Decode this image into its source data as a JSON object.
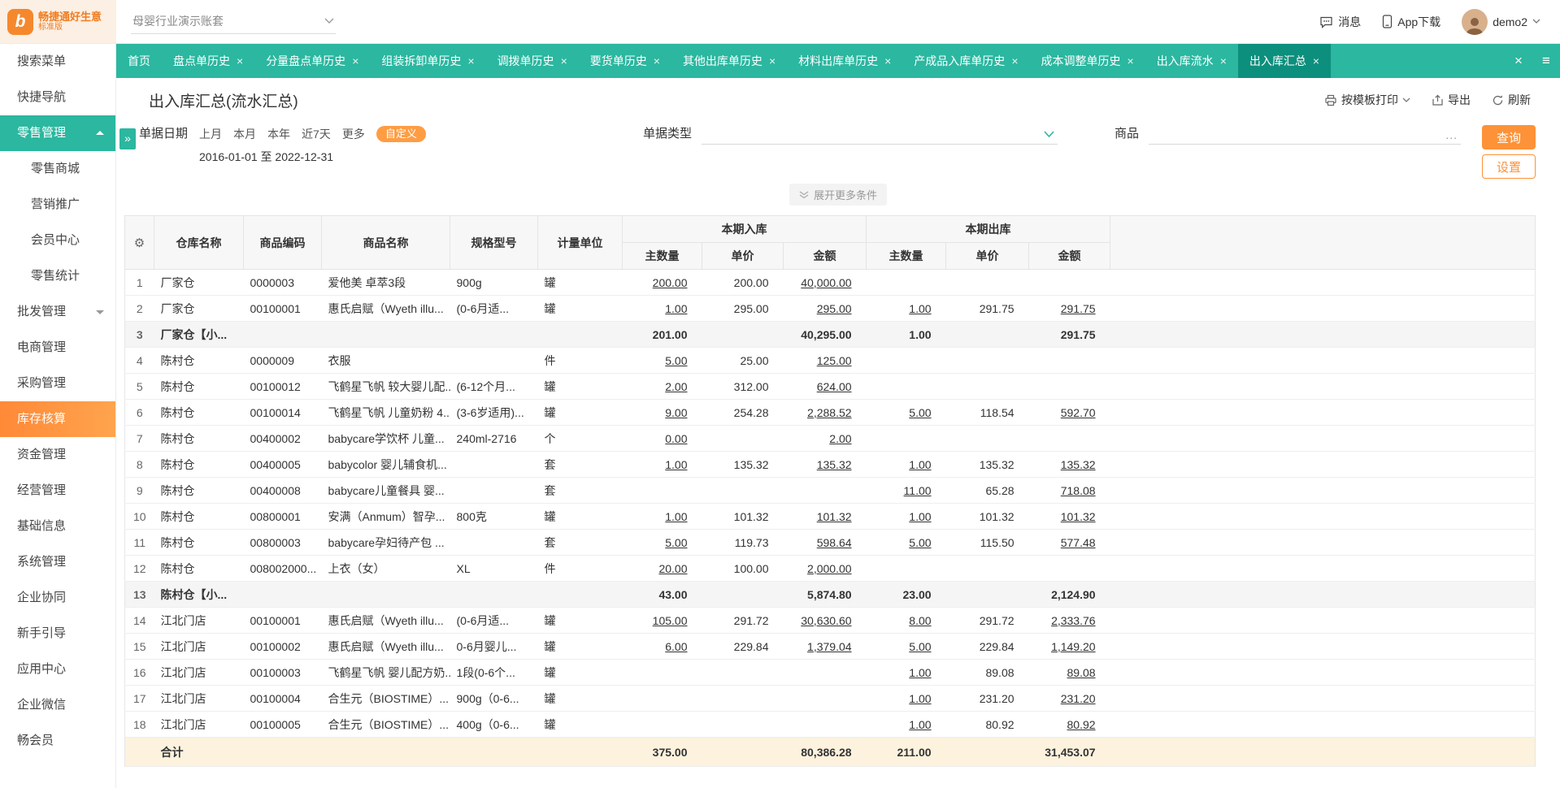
{
  "topbar": {
    "brand": "畅捷通好生意",
    "edition": "标准版",
    "account": "母婴行业演示账套",
    "messages": "消息",
    "app_download": "App下载",
    "user": "demo2"
  },
  "tabs": [
    {
      "label": "首页",
      "closable": false
    },
    {
      "label": "盘点单历史",
      "closable": true
    },
    {
      "label": "分量盘点单历史",
      "closable": true
    },
    {
      "label": "组装拆卸单历史",
      "closable": true
    },
    {
      "label": "调拨单历史",
      "closable": true
    },
    {
      "label": "要货单历史",
      "closable": true
    },
    {
      "label": "其他出库单历史",
      "closable": true
    },
    {
      "label": "材料出库单历史",
      "closable": true
    },
    {
      "label": "产成品入库单历史",
      "closable": true
    },
    {
      "label": "成本调整单历史",
      "closable": true
    },
    {
      "label": "出入库流水",
      "closable": true
    },
    {
      "label": "出入库汇总",
      "closable": true,
      "active": true
    }
  ],
  "sidebar": [
    {
      "label": "搜索菜单",
      "kind": "item"
    },
    {
      "label": "快捷导航",
      "kind": "item"
    },
    {
      "label": "零售管理",
      "kind": "item",
      "state": "teal",
      "caret": "up"
    },
    {
      "label": "零售商城",
      "kind": "sub"
    },
    {
      "label": "营销推广",
      "kind": "sub"
    },
    {
      "label": "会员中心",
      "kind": "sub"
    },
    {
      "label": "零售统计",
      "kind": "sub"
    },
    {
      "label": "批发管理",
      "kind": "item",
      "caret": "down"
    },
    {
      "label": "电商管理",
      "kind": "item"
    },
    {
      "label": "采购管理",
      "kind": "item"
    },
    {
      "label": "库存核算",
      "kind": "item",
      "state": "orange"
    },
    {
      "label": "资金管理",
      "kind": "item"
    },
    {
      "label": "经营管理",
      "kind": "item"
    },
    {
      "label": "基础信息",
      "kind": "item"
    },
    {
      "label": "系统管理",
      "kind": "item"
    },
    {
      "label": "企业协同",
      "kind": "item"
    },
    {
      "label": "新手引导",
      "kind": "item"
    },
    {
      "label": "应用中心",
      "kind": "item"
    },
    {
      "label": "企业微信",
      "kind": "item"
    },
    {
      "label": "畅会员",
      "kind": "item"
    }
  ],
  "page": {
    "title": "出入库汇总(流水汇总)",
    "print": "按模板打印",
    "export": "导出",
    "refresh": "刷新"
  },
  "filter": {
    "date_label": "单据日期",
    "quick_links": [
      "上月",
      "本月",
      "本年",
      "近7天",
      "更多"
    ],
    "custom": "自定义",
    "date_range": "2016-01-01 至 2022-12-31",
    "type_label": "单据类型",
    "product_label": "商品",
    "dots": "...",
    "query": "查询",
    "settings": "设置",
    "expand_more": "展开更多条件"
  },
  "table": {
    "group_in": "本期入库",
    "group_out": "本期出库",
    "headers": {
      "warehouse": "仓库名称",
      "code": "商品编码",
      "name": "商品名称",
      "spec": "规格型号",
      "unit": "计量单位",
      "qty": "主数量",
      "price": "单价",
      "amount": "金额"
    },
    "rows": [
      {
        "num": "1",
        "warehouse": "厂家仓",
        "code": "0000003",
        "name": "爱他美 卓萃3段",
        "spec": "900g",
        "unit": "罐",
        "in_qty": "200.00",
        "in_price": "200.00",
        "in_amount": "40,000.00"
      },
      {
        "num": "2",
        "warehouse": "厂家仓",
        "code": "00100001",
        "name": "惠氏启赋（Wyeth illu...",
        "spec": "(0-6月适...",
        "unit": "罐",
        "in_qty": "1.00",
        "in_price": "295.00",
        "in_amount": "295.00",
        "out_qty": "1.00",
        "out_price": "291.75",
        "out_amount": "291.75"
      },
      {
        "num": "3",
        "type": "group",
        "warehouse": "厂家仓【小...",
        "in_qty": "201.00",
        "in_amount": "40,295.00",
        "out_qty": "1.00",
        "out_amount": "291.75"
      },
      {
        "num": "4",
        "warehouse": "陈村仓",
        "code": "0000009",
        "name": "衣服",
        "unit": "件",
        "in_qty": "5.00",
        "in_price": "25.00",
        "in_amount": "125.00"
      },
      {
        "num": "5",
        "warehouse": "陈村仓",
        "code": "00100012",
        "name": "飞鹤星飞帆 较大婴儿配...",
        "spec": "(6-12个月...",
        "unit": "罐",
        "in_qty": "2.00",
        "in_price": "312.00",
        "in_amount": "624.00"
      },
      {
        "num": "6",
        "warehouse": "陈村仓",
        "code": "00100014",
        "name": "飞鹤星飞帆 儿童奶粉 4...",
        "spec": "(3-6岁适用)...",
        "unit": "罐",
        "in_qty": "9.00",
        "in_price": "254.28",
        "in_amount": "2,288.52",
        "out_qty": "5.00",
        "out_price": "118.54",
        "out_amount": "592.70"
      },
      {
        "num": "7",
        "warehouse": "陈村仓",
        "code": "00400002",
        "name": "babycare学饮杯 儿童...",
        "spec": "240ml-2716",
        "unit": "个",
        "in_qty": "0.00",
        "in_amount": "2.00"
      },
      {
        "num": "8",
        "warehouse": "陈村仓",
        "code": "00400005",
        "name": "babycolor 婴儿辅食机...",
        "unit": "套",
        "in_qty": "1.00",
        "in_price": "135.32",
        "in_amount": "135.32",
        "out_qty": "1.00",
        "out_price": "135.32",
        "out_amount": "135.32"
      },
      {
        "num": "9",
        "warehouse": "陈村仓",
        "code": "00400008",
        "name": "babycare儿童餐具 婴...",
        "unit": "套",
        "out_qty": "11.00",
        "out_price": "65.28",
        "out_amount": "718.08"
      },
      {
        "num": "10",
        "warehouse": "陈村仓",
        "code": "00800001",
        "name": "安满（Anmum）智孕...",
        "spec": "800克",
        "unit": "罐",
        "in_qty": "1.00",
        "in_price": "101.32",
        "in_amount": "101.32",
        "out_qty": "1.00",
        "out_price": "101.32",
        "out_amount": "101.32"
      },
      {
        "num": "11",
        "warehouse": "陈村仓",
        "code": "00800003",
        "name": "babycare孕妇待产包 ...",
        "unit": "套",
        "in_qty": "5.00",
        "in_price": "119.73",
        "in_amount": "598.64",
        "out_qty": "5.00",
        "out_price": "115.50",
        "out_amount": "577.48"
      },
      {
        "num": "12",
        "warehouse": "陈村仓",
        "code": "008002000...",
        "name": "上衣（女）",
        "spec": "XL",
        "unit": "件",
        "in_qty": "20.00",
        "in_price": "100.00",
        "in_amount": "2,000.00"
      },
      {
        "num": "13",
        "type": "group",
        "warehouse": "陈村仓【小...",
        "in_qty": "43.00",
        "in_amount": "5,874.80",
        "out_qty": "23.00",
        "out_amount": "2,124.90"
      },
      {
        "num": "14",
        "warehouse": "江北门店",
        "code": "00100001",
        "name": "惠氏启赋（Wyeth illu...",
        "spec": "(0-6月适...",
        "unit": "罐",
        "in_qty": "105.00",
        "in_price": "291.72",
        "in_amount": "30,630.60",
        "out_qty": "8.00",
        "out_price": "291.72",
        "out_amount": "2,333.76"
      },
      {
        "num": "15",
        "warehouse": "江北门店",
        "code": "00100002",
        "name": "惠氏启赋（Wyeth illu...",
        "spec": "0-6月婴儿...",
        "unit": "罐",
        "in_qty": "6.00",
        "in_price": "229.84",
        "in_amount": "1,379.04",
        "out_qty": "5.00",
        "out_price": "229.84",
        "out_amount": "1,149.20"
      },
      {
        "num": "16",
        "warehouse": "江北门店",
        "code": "00100003",
        "name": "飞鹤星飞帆 婴儿配方奶...",
        "spec": "1段(0-6个...",
        "unit": "罐",
        "out_qty": "1.00",
        "out_price": "89.08",
        "out_amount": "89.08"
      },
      {
        "num": "17",
        "warehouse": "江北门店",
        "code": "00100004",
        "name": "合生元（BIOSTIME）...",
        "spec": "900g（0-6...",
        "unit": "罐",
        "out_qty": "1.00",
        "out_price": "231.20",
        "out_amount": "231.20"
      },
      {
        "num": "18",
        "warehouse": "江北门店",
        "code": "00100005",
        "name": "合生元（BIOSTIME）...",
        "spec": "400g（0-6...",
        "unit": "罐",
        "out_qty": "1.00",
        "out_price": "80.92",
        "out_amount": "80.92"
      }
    ],
    "total": {
      "warehouse": "合计",
      "in_qty": "375.00",
      "in_amount": "80,386.28",
      "out_qty": "211.00",
      "out_amount": "31,453.07"
    }
  },
  "colors": {
    "teal": "#2bb7a0",
    "teal_dark": "#0d8f7d",
    "orange": "#fd9238",
    "badge_orange": "#ff9d43"
  }
}
